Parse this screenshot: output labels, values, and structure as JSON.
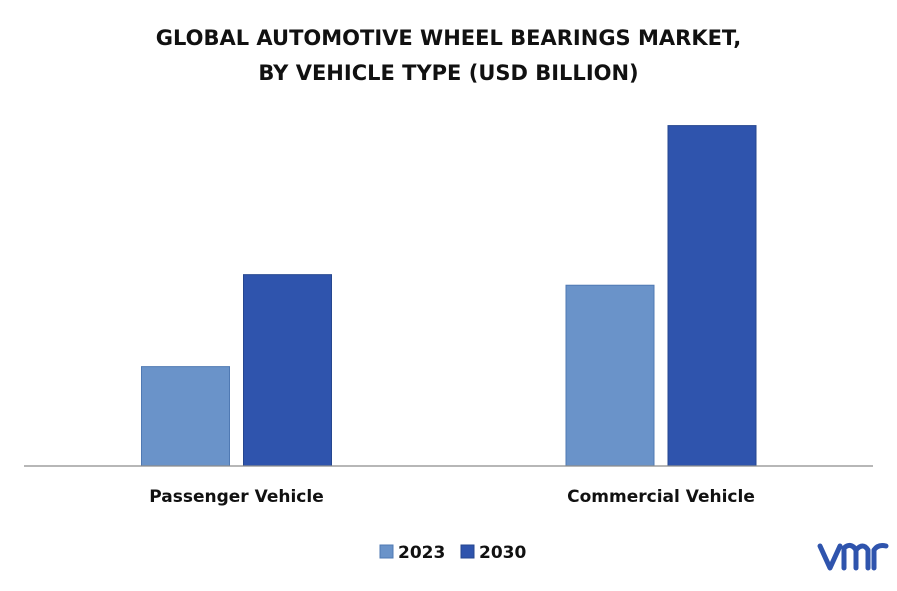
{
  "chart_data": {
    "type": "bar",
    "title_lines": [
      "GLOBAL AUTOMOTIVE WHEEL BEARINGS MARKET,",
      "BY VEHICLE TYPE (USD BILLION)"
    ],
    "categories": [
      "Passenger Vehicle",
      "Commercial Vehicle"
    ],
    "series": [
      {
        "name": "2023",
        "values": [
          9.4,
          17.1
        ],
        "color": "#6a93c9"
      },
      {
        "name": "2030",
        "values": [
          18.1,
          32.2
        ],
        "color": "#2f54ad"
      }
    ],
    "ylim": [
      0,
      35
    ],
    "grid": false,
    "legend": "bottom-center",
    "axis_color": "#8c8c8c"
  },
  "logo": {
    "text": "vmr",
    "color": "#2f54ad",
    "icon": "vmr-logo-icon"
  }
}
